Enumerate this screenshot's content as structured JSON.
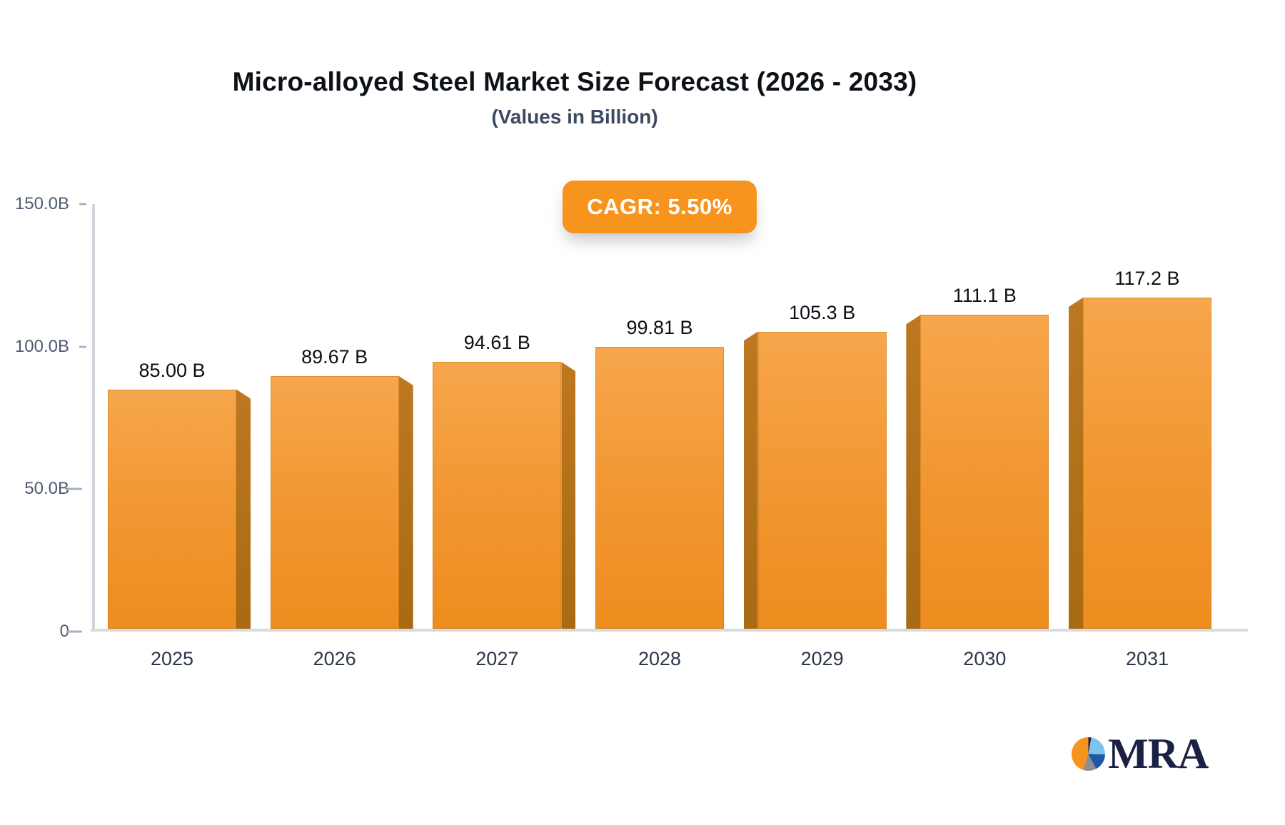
{
  "title": "Micro-alloyed Steel Market Size Forecast (2026 - 2033)",
  "subtitle": "(Values in Billion)",
  "badge": {
    "label": "CAGR: 5.50%"
  },
  "logo": {
    "text": "MRA"
  },
  "chart_data": {
    "type": "bar",
    "categories": [
      "2025",
      "2026",
      "2027",
      "2028",
      "2029",
      "2030",
      "2031"
    ],
    "values": [
      85.0,
      89.67,
      94.61,
      99.81,
      105.3,
      111.1,
      117.2
    ],
    "value_labels": [
      "85.00 B",
      "89.67 B",
      "94.61 B",
      "99.81 B",
      "105.3 B",
      "111.1 B",
      "117.2 B"
    ],
    "y_ticks": [
      {
        "label": "150.0B",
        "value": 150
      },
      {
        "label": "100.0B",
        "value": 100
      },
      {
        "label": "50.0B",
        "value": 50
      },
      {
        "label": "0",
        "value": 0
      }
    ],
    "ylim": [
      0,
      150
    ],
    "xlabel": "",
    "ylabel": "",
    "legend": null,
    "grid": false,
    "colors": {
      "bar_face_top": "#f7a64c",
      "bar_face_bottom": "#ee8d1f",
      "bar_side": "#b87318",
      "accent": "#f7941e",
      "axis": "#d6d6de",
      "tick_text": "#4d5b70",
      "title_text": "#0d1219",
      "subtitle_text": "#3c4a61"
    }
  }
}
